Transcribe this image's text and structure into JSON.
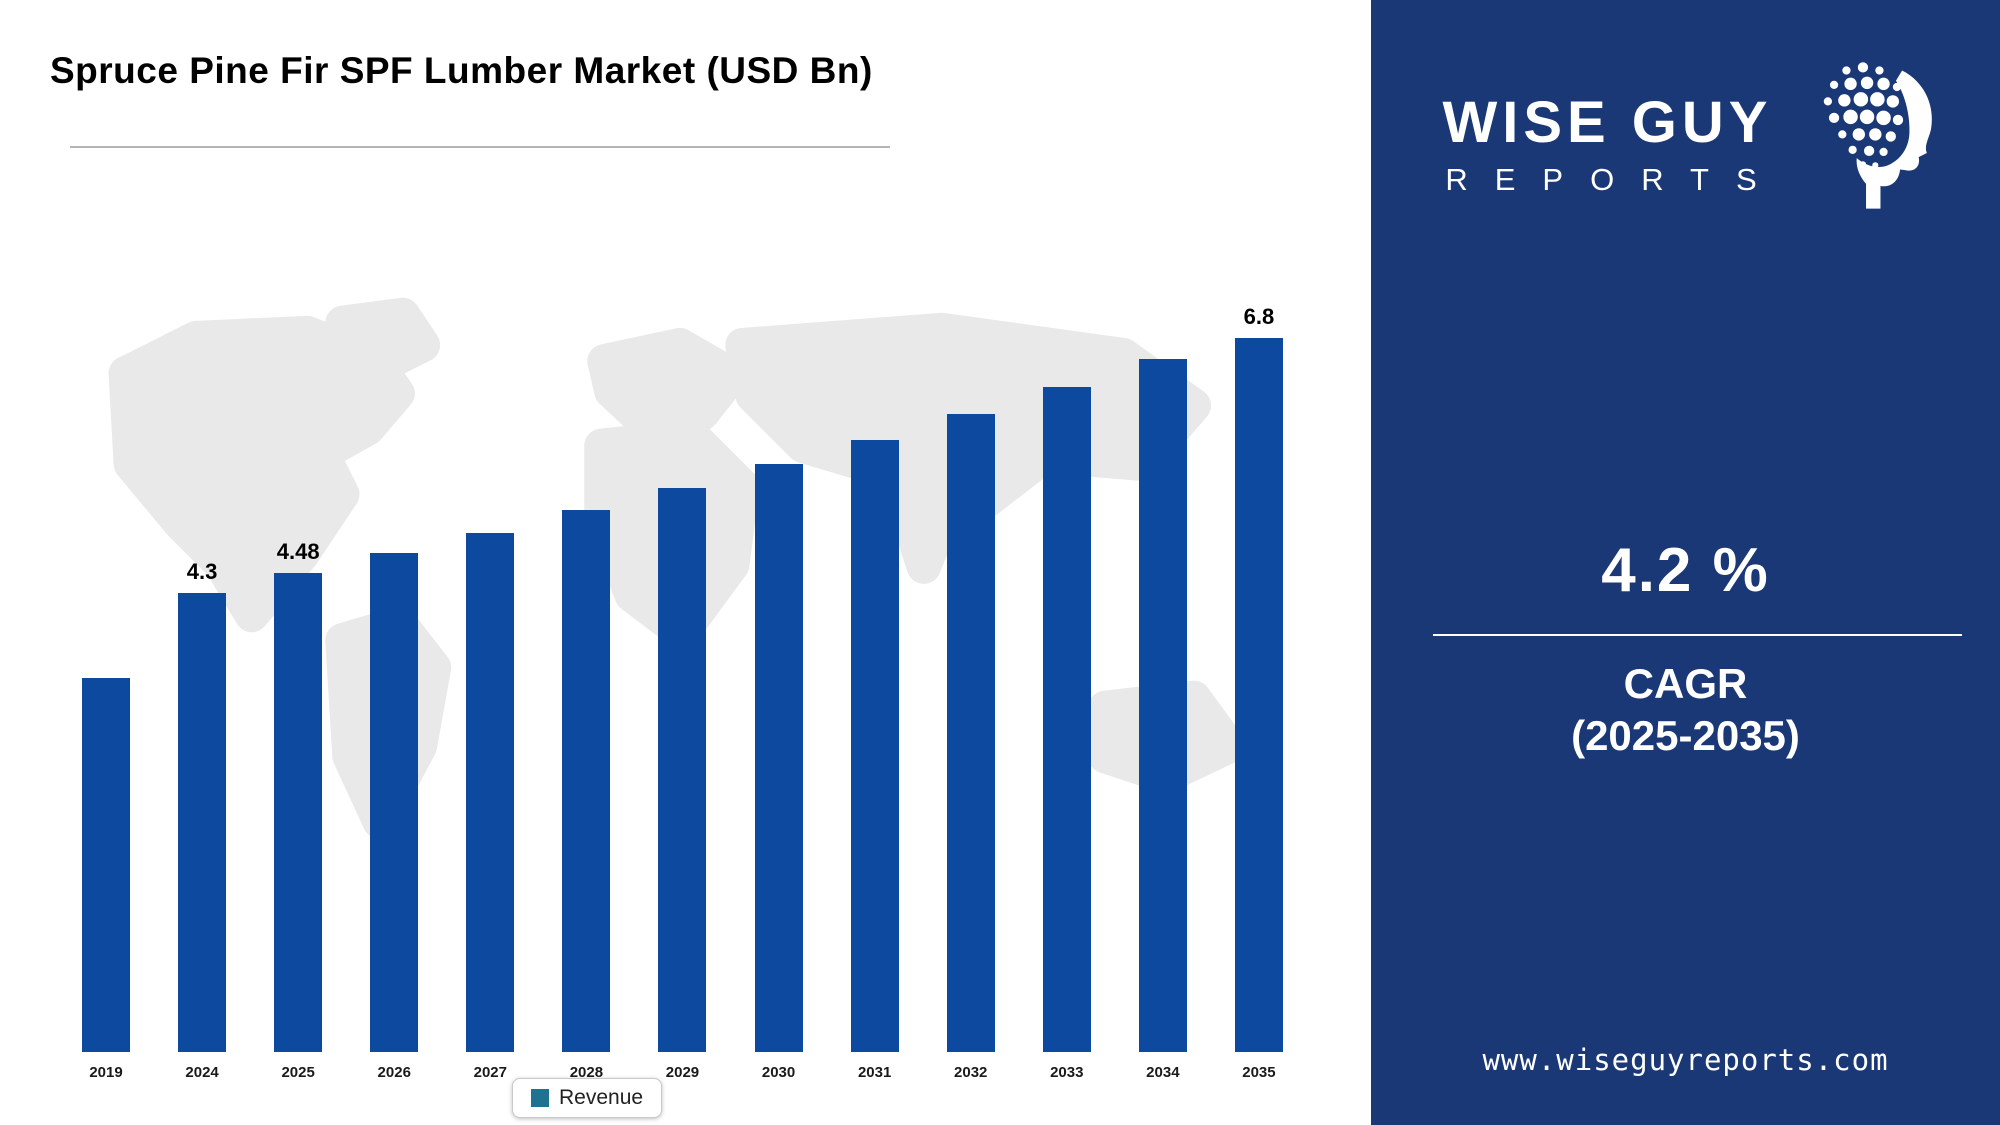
{
  "header": {
    "title": "Spruce Pine Fir SPF Lumber Market (USD Bn)"
  },
  "chart_data": {
    "type": "bar",
    "title": "Spruce Pine Fir SPF Lumber Market (USD Bn)",
    "categories": [
      "2019",
      "2024",
      "2025",
      "2026",
      "2027",
      "2028",
      "2029",
      "2030",
      "2031",
      "2032",
      "2033",
      "2034",
      "2035"
    ],
    "values": [
      3.5,
      4.3,
      4.48,
      4.67,
      4.86,
      5.07,
      5.28,
      5.5,
      5.73,
      5.97,
      6.22,
      6.49,
      6.8
    ],
    "data_labels": [
      "",
      "4.3",
      "4.48",
      "",
      "",
      "",
      "",
      "",
      "",
      "",
      "",
      "",
      "6.8"
    ],
    "xlabel": "",
    "ylabel": "",
    "ylim": [
      0,
      7
    ],
    "grid": false,
    "bar_color": "#0d4a9f",
    "legend_position": "bottom",
    "legend": [
      {
        "label": "Revenue",
        "color": "#1f7391"
      }
    ]
  },
  "panel": {
    "background": "#1a3876",
    "logo_line1": "WISE GUY",
    "logo_line2": "REPORTS",
    "cagr_value": "4.2 %",
    "cagr_label": "CAGR",
    "cagr_range": "(2025-2035)",
    "website": "www.wiseguyreports.com"
  }
}
